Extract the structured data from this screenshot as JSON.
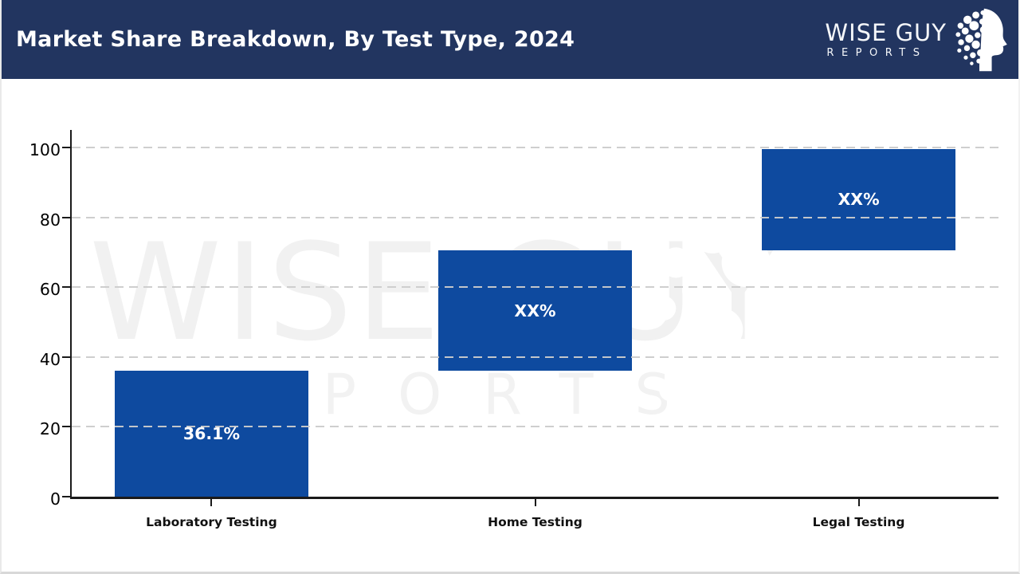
{
  "header": {
    "title": "Market Share Breakdown, By Test Type, 2024",
    "logo": {
      "line1": "WISE GUY",
      "line2": "REPORTS"
    }
  },
  "watermark": {
    "line1": "WISE GUY",
    "line2": "REPORTS"
  },
  "colors": {
    "header_bg": "#223560",
    "title_text": "#ffffff",
    "bar": "#0e4a9f",
    "bar_label_text": "#ffffff",
    "axis": "#1a1a1a",
    "gridline": "#cccccc",
    "watermark": "#f1f1f1"
  },
  "chart_data": {
    "type": "bar",
    "subtype": "floating-segment-bars (stacked market-share breakdown)",
    "title": "Market Share Breakdown, By Test Type, 2024",
    "categories": [
      "Laboratory Testing",
      "Home Testing",
      "Legal Testing"
    ],
    "segments": [
      {
        "category": "Laboratory Testing",
        "start": 0,
        "end": 36.1,
        "label": "36.1%"
      },
      {
        "category": "Home Testing",
        "start": 36.1,
        "end": 70.5,
        "label": "XX%"
      },
      {
        "category": "Legal Testing",
        "start": 70.5,
        "end": 99.6,
        "label": "XX%"
      }
    ],
    "xlabel": "",
    "ylabel": "",
    "yticks": [
      0,
      20,
      40,
      60,
      80,
      100
    ],
    "ylim": [
      0,
      105
    ],
    "grid": "horizontal dashed, drawn over bars",
    "legend": "none",
    "bar_color": "#0e4a9f"
  }
}
